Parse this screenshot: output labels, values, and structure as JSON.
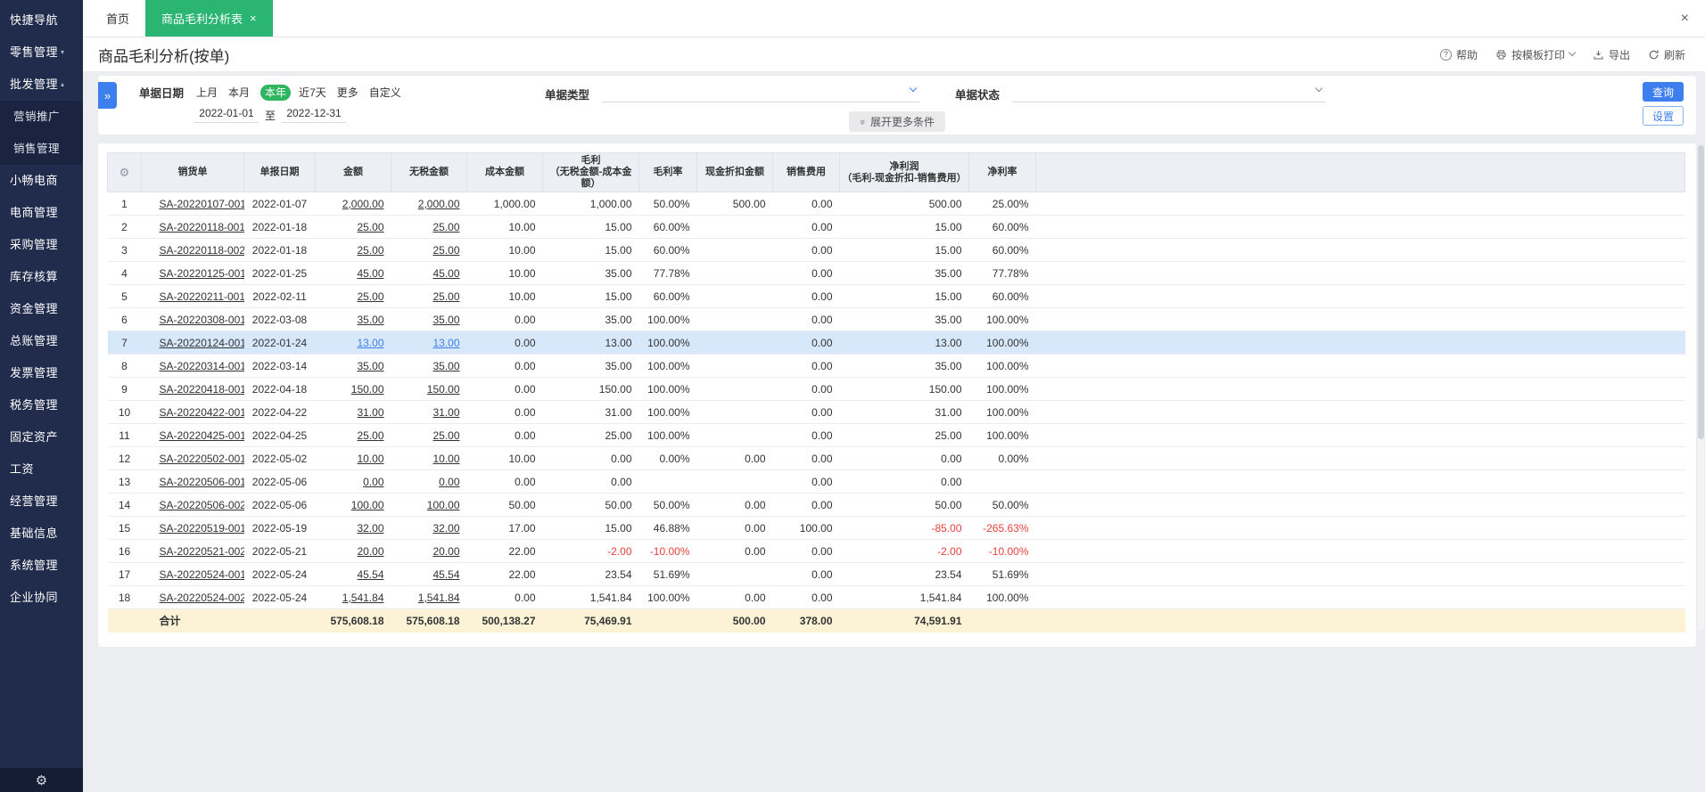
{
  "icons": {
    "close": "×",
    "collapse": "»",
    "gear": "⚙",
    "caret_down": "▾",
    "caret_up": "▴",
    "double_chevron_down": "»",
    "help": "?"
  },
  "sidebar": {
    "items": [
      {
        "label": "快捷导航",
        "type": "top"
      },
      {
        "label": "零售管理",
        "type": "top",
        "caret": "down"
      },
      {
        "label": "批发管理",
        "type": "top",
        "caret": "up"
      },
      {
        "label": "营销推广",
        "type": "sub"
      },
      {
        "label": "销售管理",
        "type": "sub"
      },
      {
        "label": "小畅电商",
        "type": "top"
      },
      {
        "label": "电商管理",
        "type": "top"
      },
      {
        "label": "采购管理",
        "type": "top"
      },
      {
        "label": "库存核算",
        "type": "top"
      },
      {
        "label": "资金管理",
        "type": "top"
      },
      {
        "label": "总账管理",
        "type": "top"
      },
      {
        "label": "发票管理",
        "type": "top"
      },
      {
        "label": "税务管理",
        "type": "top"
      },
      {
        "label": "固定资产",
        "type": "top"
      },
      {
        "label": "工资",
        "type": "top"
      },
      {
        "label": "经营管理",
        "type": "top"
      },
      {
        "label": "基础信息",
        "type": "top"
      },
      {
        "label": "系统管理",
        "type": "top"
      },
      {
        "label": "企业协同",
        "type": "top"
      }
    ]
  },
  "tabs": [
    {
      "label": "首页"
    },
    {
      "label": "商品毛利分析表"
    }
  ],
  "page": {
    "title": "商品毛利分析(按单)"
  },
  "toolbar": {
    "help": "帮助",
    "print": "按模板打印",
    "export": "导出",
    "refresh": "刷新"
  },
  "filters": {
    "date_label": "单据日期",
    "quick_options": [
      "上月",
      "本月",
      "本年",
      "近7天",
      "更多",
      "自定义"
    ],
    "quick_selected": "本年",
    "date_from": "2022-01-01",
    "range_separator": "至",
    "date_to": "2022-12-31",
    "type_label": "单据类型",
    "status_label": "单据状态",
    "query_button": "查询",
    "settings_button": "设置",
    "expand_more": "展开更多条件"
  },
  "table": {
    "header": {
      "order": "销货单",
      "date": "单报日期",
      "amount": "金额",
      "tax_free": "无税金额",
      "cost": "成本金额",
      "gross_line1": "毛利",
      "gross_line2": "（无税金额-成本金额）",
      "gross_rate": "毛利率",
      "cash_discount": "现金折扣金额",
      "sales_expense": "销售费用",
      "net_line1": "净利润",
      "net_line2": "（毛利-现金折扣-销售费用）",
      "net_rate": "净利率"
    },
    "rows": [
      {
        "no": "1",
        "order": "SA-20220107-001",
        "date": "2022-01-07",
        "amount": "2,000.00",
        "tax_free": "2,000.00",
        "cost": "1,000.00",
        "gross": "1,000.00",
        "gross_rate": "50.00%",
        "cash_discount": "500.00",
        "sales_expense": "0.00",
        "net": "500.00",
        "net_rate": "25.00%"
      },
      {
        "no": "2",
        "order": "SA-20220118-001",
        "date": "2022-01-18",
        "amount": "25.00",
        "tax_free": "25.00",
        "cost": "10.00",
        "gross": "15.00",
        "gross_rate": "60.00%",
        "cash_discount": "",
        "sales_expense": "0.00",
        "net": "15.00",
        "net_rate": "60.00%"
      },
      {
        "no": "3",
        "order": "SA-20220118-002",
        "date": "2022-01-18",
        "amount": "25.00",
        "tax_free": "25.00",
        "cost": "10.00",
        "gross": "15.00",
        "gross_rate": "60.00%",
        "cash_discount": "",
        "sales_expense": "0.00",
        "net": "15.00",
        "net_rate": "60.00%"
      },
      {
        "no": "4",
        "order": "SA-20220125-001",
        "date": "2022-01-25",
        "amount": "45.00",
        "tax_free": "45.00",
        "cost": "10.00",
        "gross": "35.00",
        "gross_rate": "77.78%",
        "cash_discount": "",
        "sales_expense": "0.00",
        "net": "35.00",
        "net_rate": "77.78%"
      },
      {
        "no": "5",
        "order": "SA-20220211-001",
        "date": "2022-02-11",
        "amount": "25.00",
        "tax_free": "25.00",
        "cost": "10.00",
        "gross": "15.00",
        "gross_rate": "60.00%",
        "cash_discount": "",
        "sales_expense": "0.00",
        "net": "15.00",
        "net_rate": "60.00%"
      },
      {
        "no": "6",
        "order": "SA-20220308-001",
        "date": "2022-03-08",
        "amount": "35.00",
        "tax_free": "35.00",
        "cost": "0.00",
        "gross": "35.00",
        "gross_rate": "100.00%",
        "cash_discount": "",
        "sales_expense": "0.00",
        "net": "35.00",
        "net_rate": "100.00%"
      },
      {
        "no": "7",
        "order": "SA-20220124-001",
        "date": "2022-01-24",
        "amount": "13.00",
        "tax_free": "13.00",
        "cost": "0.00",
        "gross": "13.00",
        "gross_rate": "100.00%",
        "cash_discount": "",
        "sales_expense": "0.00",
        "net": "13.00",
        "net_rate": "100.00%",
        "selected": true
      },
      {
        "no": "8",
        "order": "SA-20220314-001",
        "date": "2022-03-14",
        "amount": "35.00",
        "tax_free": "35.00",
        "cost": "0.00",
        "gross": "35.00",
        "gross_rate": "100.00%",
        "cash_discount": "",
        "sales_expense": "0.00",
        "net": "35.00",
        "net_rate": "100.00%"
      },
      {
        "no": "9",
        "order": "SA-20220418-001",
        "date": "2022-04-18",
        "amount": "150.00",
        "tax_free": "150.00",
        "cost": "0.00",
        "gross": "150.00",
        "gross_rate": "100.00%",
        "cash_discount": "",
        "sales_expense": "0.00",
        "net": "150.00",
        "net_rate": "100.00%"
      },
      {
        "no": "10",
        "order": "SA-20220422-001",
        "date": "2022-04-22",
        "amount": "31.00",
        "tax_free": "31.00",
        "cost": "0.00",
        "gross": "31.00",
        "gross_rate": "100.00%",
        "cash_discount": "",
        "sales_expense": "0.00",
        "net": "31.00",
        "net_rate": "100.00%"
      },
      {
        "no": "11",
        "order": "SA-20220425-001",
        "date": "2022-04-25",
        "amount": "25.00",
        "tax_free": "25.00",
        "cost": "0.00",
        "gross": "25.00",
        "gross_rate": "100.00%",
        "cash_discount": "",
        "sales_expense": "0.00",
        "net": "25.00",
        "net_rate": "100.00%"
      },
      {
        "no": "12",
        "order": "SA-20220502-001",
        "date": "2022-05-02",
        "amount": "10.00",
        "tax_free": "10.00",
        "cost": "10.00",
        "gross": "0.00",
        "gross_rate": "0.00%",
        "cash_discount": "0.00",
        "sales_expense": "0.00",
        "net": "0.00",
        "net_rate": "0.00%"
      },
      {
        "no": "13",
        "order": "SA-20220506-001",
        "date": "2022-05-06",
        "amount": "0.00",
        "tax_free": "0.00",
        "cost": "0.00",
        "gross": "0.00",
        "gross_rate": "",
        "cash_discount": "",
        "sales_expense": "0.00",
        "net": "0.00",
        "net_rate": ""
      },
      {
        "no": "14",
        "order": "SA-20220506-002",
        "date": "2022-05-06",
        "amount": "100.00",
        "tax_free": "100.00",
        "cost": "50.00",
        "gross": "50.00",
        "gross_rate": "50.00%",
        "cash_discount": "0.00",
        "sales_expense": "0.00",
        "net": "50.00",
        "net_rate": "50.00%"
      },
      {
        "no": "15",
        "order": "SA-20220519-001",
        "date": "2022-05-19",
        "amount": "32.00",
        "tax_free": "32.00",
        "cost": "17.00",
        "gross": "15.00",
        "gross_rate": "46.88%",
        "cash_discount": "0.00",
        "sales_expense": "100.00",
        "net": "-85.00",
        "net_rate": "-265.63%"
      },
      {
        "no": "16",
        "order": "SA-20220521-002",
        "date": "2022-05-21",
        "amount": "20.00",
        "tax_free": "20.00",
        "cost": "22.00",
        "gross": "-2.00",
        "gross_rate": "-10.00%",
        "cash_discount": "0.00",
        "sales_expense": "0.00",
        "net": "-2.00",
        "net_rate": "-10.00%"
      },
      {
        "no": "17",
        "order": "SA-20220524-001",
        "date": "2022-05-24",
        "amount": "45.54",
        "tax_free": "45.54",
        "cost": "22.00",
        "gross": "23.54",
        "gross_rate": "51.69%",
        "cash_discount": "",
        "sales_expense": "0.00",
        "net": "23.54",
        "net_rate": "51.69%"
      },
      {
        "no": "18",
        "order": "SA-20220524-002",
        "date": "2022-05-24",
        "amount": "1,541.84",
        "tax_free": "1,541.84",
        "cost": "0.00",
        "gross": "1,541.84",
        "gross_rate": "100.00%",
        "cash_discount": "0.00",
        "sales_expense": "0.00",
        "net": "1,541.84",
        "net_rate": "100.00%"
      }
    ],
    "total": {
      "label": "合计",
      "amount": "575,608.18",
      "tax_free": "575,608.18",
      "cost": "500,138.27",
      "gross": "75,469.91",
      "gross_rate": "",
      "cash_discount": "500.00",
      "sales_expense": "378.00",
      "net": "74,591.91",
      "net_rate": ""
    }
  }
}
